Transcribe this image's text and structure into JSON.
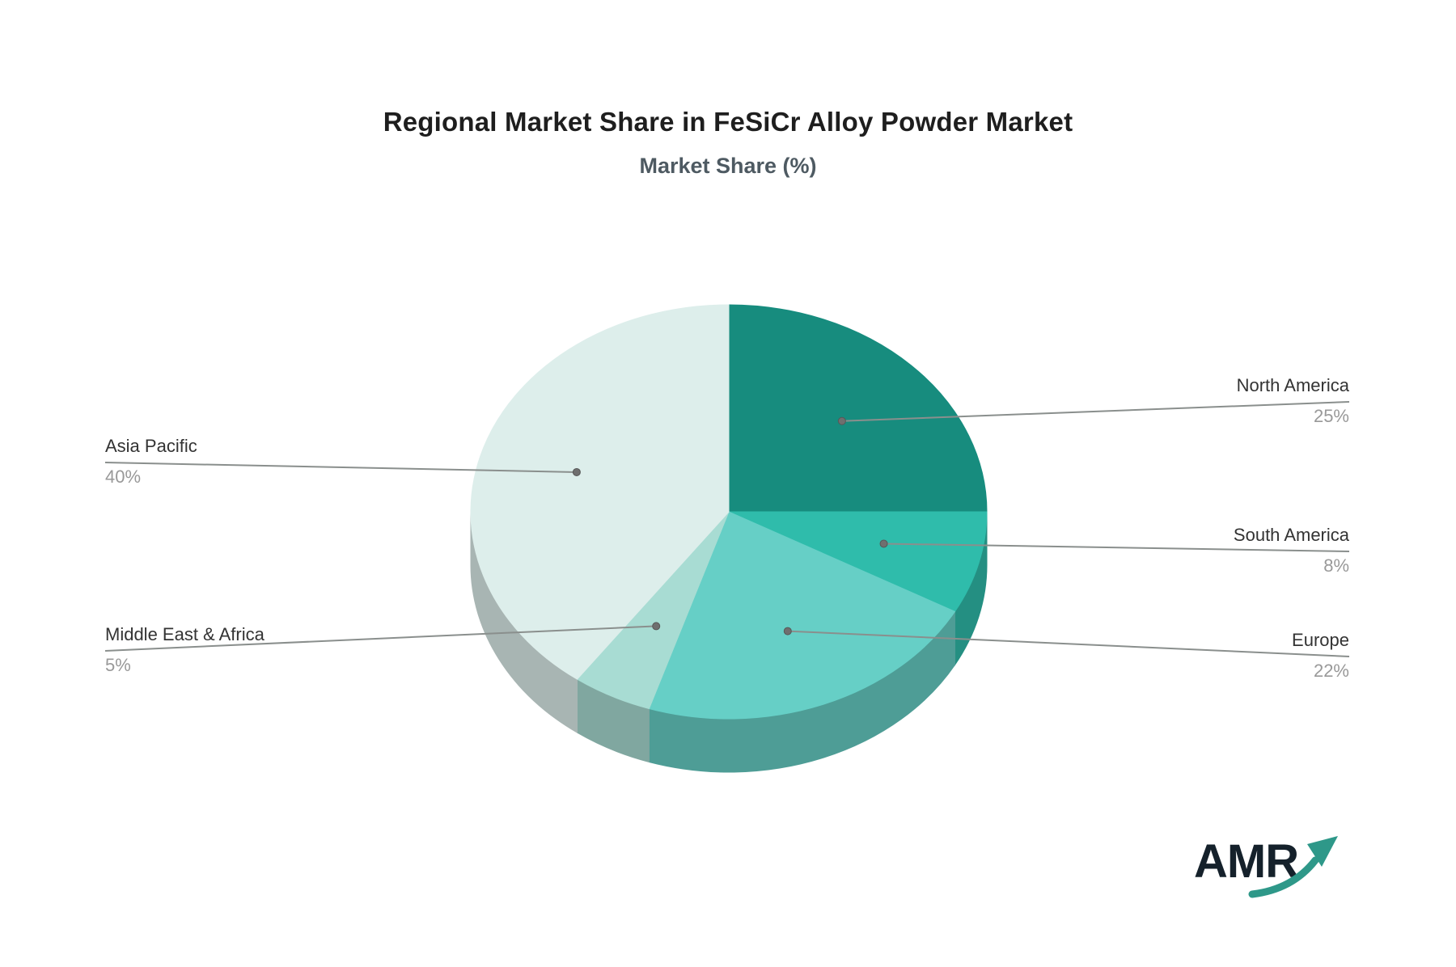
{
  "header": {
    "title": "Regional Market Share in FeSiCr Alloy Powder Market",
    "subtitle": "Market Share (%)"
  },
  "chart_data": {
    "type": "pie",
    "style": "3d",
    "title": "Regional Market Share in FeSiCr Alloy Powder Market",
    "subtitle": "Market Share (%)",
    "unit": "%",
    "start_angle_deg": 0,
    "direction": "clockwise",
    "legend": "none",
    "slices": [
      {
        "label": "North America",
        "value": 25,
        "pct": "25%",
        "color": "#178c7e"
      },
      {
        "label": "South America",
        "value": 8,
        "pct": "8%",
        "color": "#2fbcab"
      },
      {
        "label": "Europe",
        "value": 22,
        "pct": "22%",
        "color": "#66cfc6"
      },
      {
        "label": "Middle East & Africa",
        "value": 5,
        "pct": "5%",
        "color": "#a8dcd3"
      },
      {
        "label": "Asia Pacific",
        "value": 40,
        "pct": "40%",
        "color": "#ddeeeb"
      }
    ]
  },
  "colors": {
    "title": "#1e1e1e",
    "subtitle": "#4e5a62",
    "slice_label": "#333333",
    "slice_value": "#999999",
    "connector": "#8a8f8d",
    "dot": "#6f6f6f",
    "logo_text": "#15212b",
    "logo_arrow": "#2e9889"
  },
  "logo": {
    "text": "AMR"
  }
}
